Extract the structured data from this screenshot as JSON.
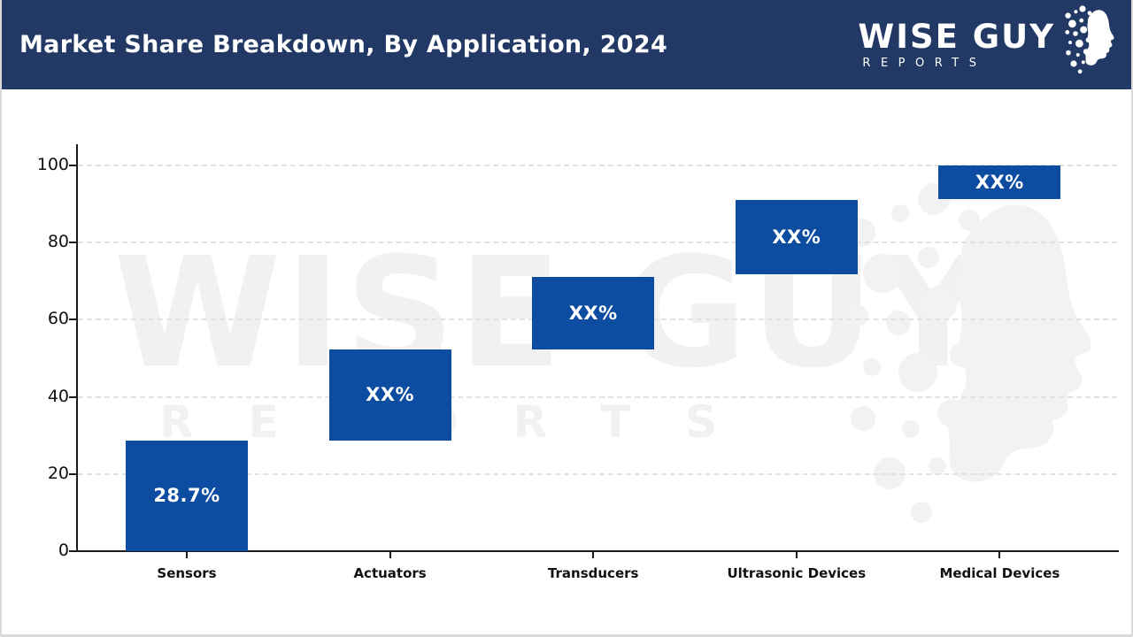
{
  "header": {
    "title": "Market Share Breakdown, By Application, 2024",
    "logo": {
      "line1": "WISE GUY",
      "line2": "REPORTS"
    }
  },
  "watermark": {
    "line1": "WISE GUY",
    "line2": "REPORTS"
  },
  "colors": {
    "header_bg": "#223965",
    "bar": "#0d4da1",
    "grid": "#e2e2e2",
    "axis": "#1a1a1a",
    "bar_label_text": "#ffffff",
    "watermark": "#f1f1f3",
    "frame_border": "#d9d9d9"
  },
  "chart_data": {
    "type": "bar",
    "variant": "floating-waterfall",
    "title": "Market Share Breakdown, By Application, 2024",
    "categories": [
      "Sensors",
      "Actuators",
      "Transducers",
      "Ultrasonic Devices",
      "Medical Devices"
    ],
    "segments": [
      {
        "category": "Sensors",
        "start": 0,
        "end": 28.7,
        "label": "28.7%"
      },
      {
        "category": "Actuators",
        "start": 28.7,
        "end": 52.4,
        "label": "XX%"
      },
      {
        "category": "Transducers",
        "start": 52.2,
        "end": 71.2,
        "label": "XX%"
      },
      {
        "category": "Ultrasonic Devices",
        "start": 71.7,
        "end": 91.0,
        "label": "XX%"
      },
      {
        "category": "Medical Devices",
        "start": 91.2,
        "end": 100.0,
        "label": "XX%"
      }
    ],
    "yticks": [
      0,
      20,
      40,
      60,
      80,
      100
    ],
    "ylim": [
      0,
      105
    ],
    "xlabel": "",
    "ylabel": "",
    "grid": "horizontal-dashed",
    "legend": "none"
  }
}
